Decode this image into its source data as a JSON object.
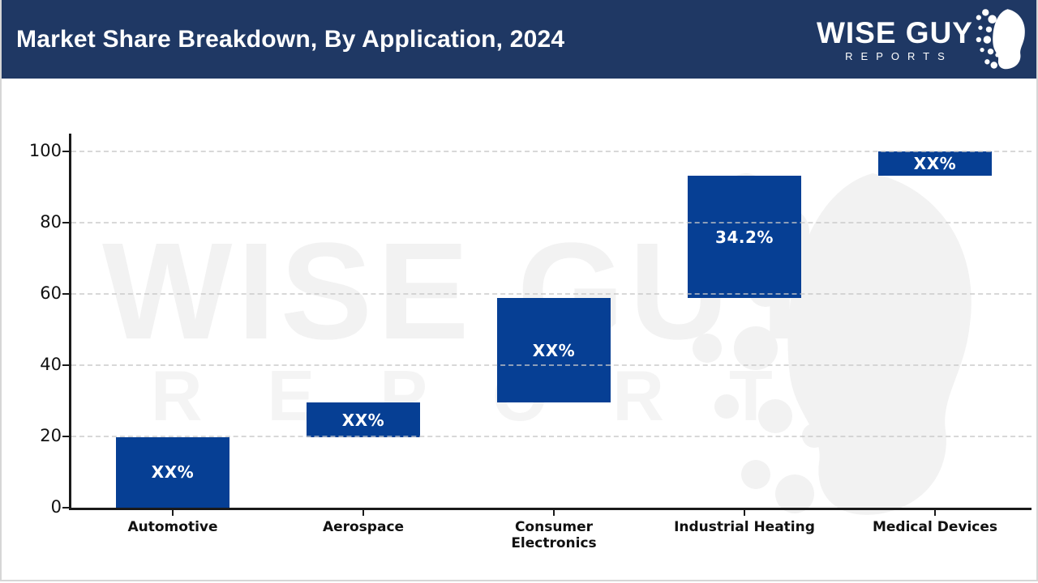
{
  "header": {
    "title": "Market Share Breakdown, By Application, 2024",
    "logo": {
      "line1": "WISE GUY",
      "line2": "REPORTS"
    }
  },
  "watermark": {
    "line1": "WISE GUY",
    "line2": "REPORTS"
  },
  "colors": {
    "header_bg": "#1F3864",
    "bar_fill": "#063F94",
    "grid_line": "#D9D9D9",
    "axis_line": "#1A1A1A",
    "bar_label_text": "#FFFFFF",
    "tick_label_text": "#111111",
    "title_text": "#FFFFFF",
    "watermark_text": "#F2F2F2",
    "frame_border": "#D6D6D6"
  },
  "chart_data": {
    "type": "bar",
    "subtype": "waterfall",
    "title": "Market Share Breakdown, By Application, 2024",
    "categories": [
      "Automotive",
      "Aerospace",
      "Consumer\nElectronics",
      "Industrial Heating",
      "Medical Devices"
    ],
    "segments": [
      {
        "category": "Automotive",
        "start": 0,
        "end": 19.8,
        "value": 19.8,
        "value_label": "XX%"
      },
      {
        "category": "Aerospace",
        "start": 19.8,
        "end": 29.5,
        "value": 9.7,
        "value_label": "XX%"
      },
      {
        "category": "Consumer\nElectronics",
        "start": 29.5,
        "end": 58.9,
        "value": 29.4,
        "value_label": "XX%"
      },
      {
        "category": "Industrial Heating",
        "start": 58.9,
        "end": 93.1,
        "value": 34.2,
        "value_label": "34.2%"
      },
      {
        "category": "Medical Devices",
        "start": 93.1,
        "end": 100,
        "value": 6.9,
        "value_label": "XX%"
      }
    ],
    "yticks": [
      0,
      20,
      40,
      60,
      80,
      100
    ],
    "ylim": [
      0,
      105
    ],
    "xlabel": "",
    "ylabel": "",
    "grid": "horizontal-dashed",
    "legend": "none"
  }
}
